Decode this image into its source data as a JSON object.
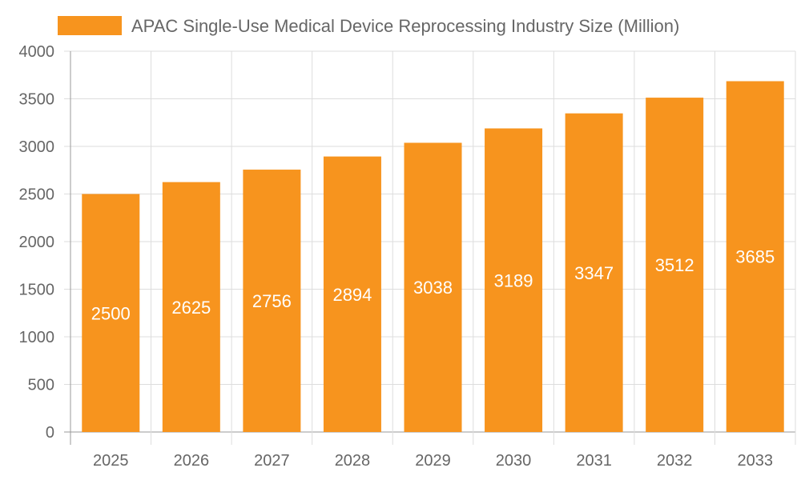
{
  "chart_data": {
    "type": "bar",
    "title": "",
    "xlabel": "",
    "ylabel": "",
    "categories": [
      "2025",
      "2026",
      "2027",
      "2028",
      "2029",
      "2030",
      "2031",
      "2032",
      "2033"
    ],
    "series": [
      {
        "name": "APAC Single-Use Medical Device Reprocessing Industry Size (Million)",
        "values": [
          2500,
          2625,
          2756,
          2894,
          3038,
          3189,
          3347,
          3512,
          3685
        ],
        "color": "#F7941E"
      }
    ],
    "ylim": [
      0,
      4000
    ],
    "yticks": [
      0,
      500,
      1000,
      1500,
      2000,
      2500,
      3000,
      3500,
      4000
    ],
    "grid": true,
    "legend": "top",
    "data_labels": true,
    "data_label_color": "#FFFFFF",
    "text_color": "#666666",
    "grid_color": "#DDDDDD"
  }
}
